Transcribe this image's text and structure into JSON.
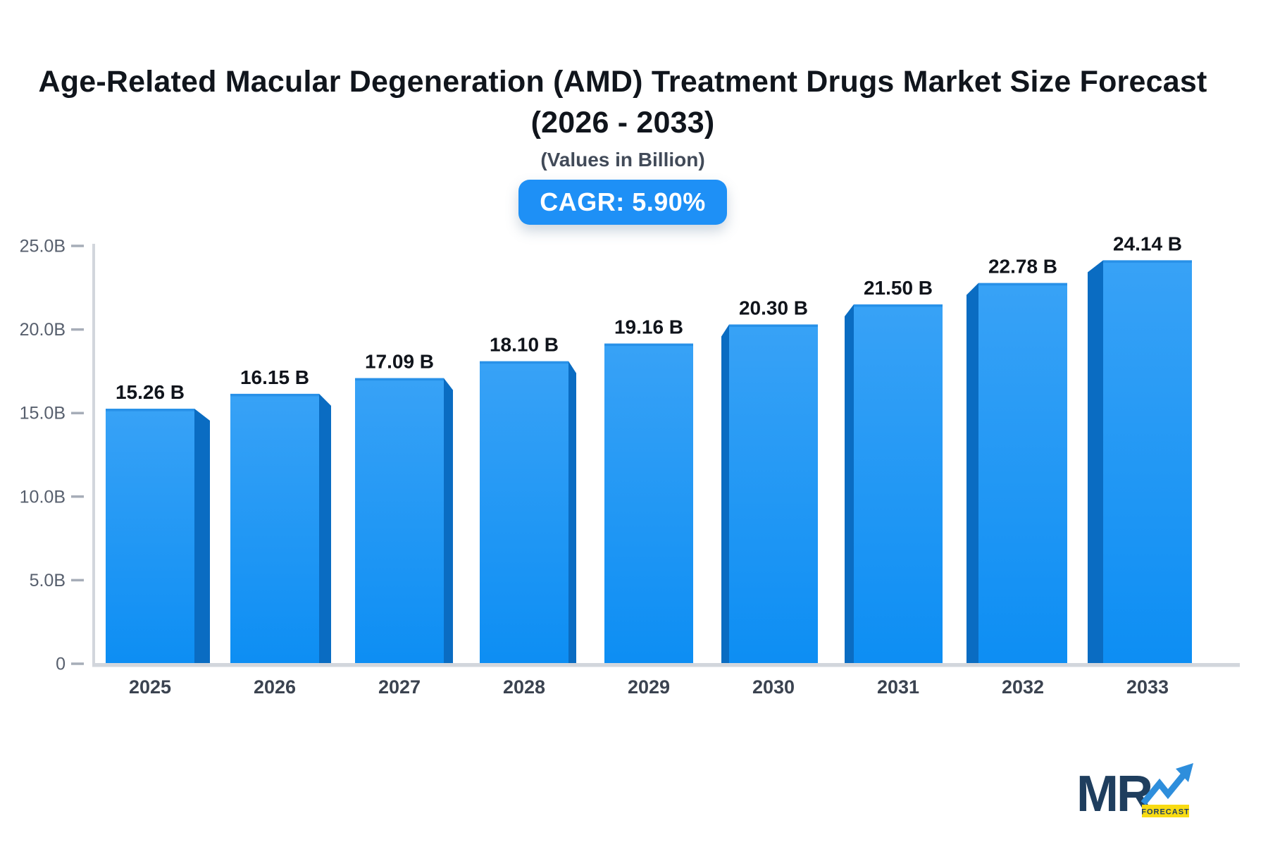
{
  "header": {
    "title_line1": "Age-Related Macular Degeneration (AMD) Treatment Drugs Market Size Forecast",
    "title_line2": "(2026 - 2033)",
    "subtitle": "(Values in Billion)",
    "cagr_badge": "CAGR: 5.90%"
  },
  "chart_data": {
    "type": "bar",
    "title": "Age-Related Macular Degeneration (AMD) Treatment Drugs Market Size Forecast (2026 - 2033)",
    "subtitle": "(Values in Billion)",
    "cagr_text": "CAGR: 5.90%",
    "categories": [
      "2025",
      "2026",
      "2027",
      "2028",
      "2029",
      "2030",
      "2031",
      "2032",
      "2033"
    ],
    "values": [
      15.26,
      16.15,
      17.09,
      18.1,
      19.16,
      20.3,
      21.5,
      22.78,
      24.14
    ],
    "bar_labels": [
      "15.26 B",
      "16.15 B",
      "17.09 B",
      "18.10 B",
      "19.16 B",
      "20.30 B",
      "21.50 B",
      "22.78 B",
      "24.14 B"
    ],
    "y_ticks": [
      {
        "label": "25.0B",
        "value": 25.0
      },
      {
        "label": "20.0B",
        "value": 20.0
      },
      {
        "label": "15.0B",
        "value": 15.0
      },
      {
        "label": "10.0B",
        "value": 10.0
      },
      {
        "label": "5.0B",
        "value": 5.0
      },
      {
        "label": "0",
        "value": 0
      }
    ],
    "ylim": [
      0,
      25
    ],
    "xlabel": "",
    "ylabel": "",
    "grid": false,
    "legend": false,
    "style": "3d-perspective-bars",
    "colors": {
      "bar_face_top": "#38A2F6",
      "bar_face_bottom": "#0D8EF3",
      "bar_top_edge": "#1E86DF",
      "bar_side": "#0A6CC2",
      "value_label": "#10141B",
      "x_label": "#3B4350",
      "y_label": "#575F6D",
      "tick": "#A6ADB8",
      "axis": "#D2D6DC",
      "badge": "#1E90F6"
    }
  },
  "logo": {
    "mr": "MR",
    "forecast": "FORECAST",
    "navy": "#1F3E5E",
    "arrow_blue": "#2E8EDC",
    "yellow": "#F8DB13"
  }
}
